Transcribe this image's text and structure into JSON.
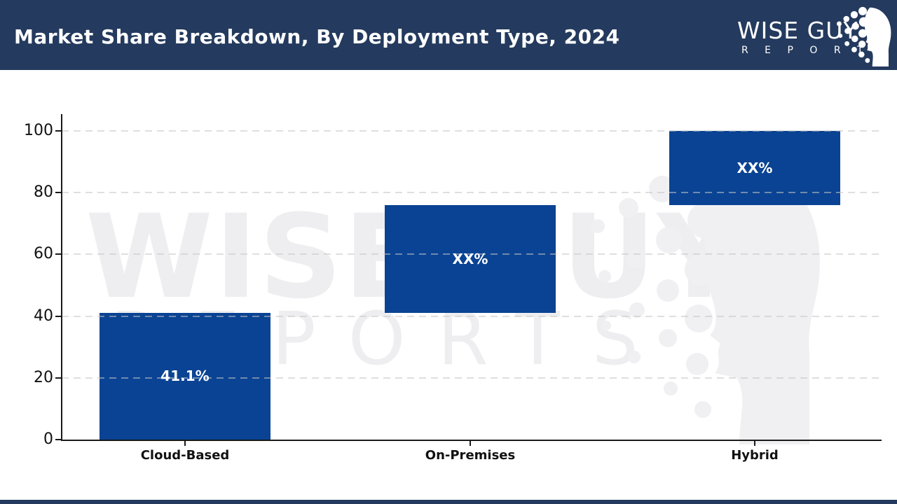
{
  "header": {
    "title": "Market Share Breakdown, By Deployment Type, 2024",
    "bg_color": "#243A5E",
    "logo": {
      "line1": "WISE GUY",
      "line2": "R E P O R T S"
    }
  },
  "watermark": {
    "line1": "WISE GUY",
    "line2": "REPORTS"
  },
  "chart_data": {
    "type": "bar",
    "variant": "waterfall",
    "title": "Market Share Breakdown, By Deployment Type, 2024",
    "categories": [
      "Cloud-Based",
      "On-Premises",
      "Hybrid"
    ],
    "segments": [
      {
        "category": "Cloud-Based",
        "start": 0,
        "end": 41.1,
        "label": "41.1%"
      },
      {
        "category": "On-Premises",
        "start": 41.1,
        "end": 76,
        "label": "XX%"
      },
      {
        "category": "Hybrid",
        "start": 76,
        "end": 100,
        "label": "XX%"
      }
    ],
    "yticks": [
      0,
      20,
      40,
      60,
      80,
      100
    ],
    "ylim": [
      0,
      105.5
    ],
    "xlabel": "",
    "ylabel": "",
    "legend": "none",
    "grid": {
      "axis": "y",
      "style": "dashed",
      "over_bars": true
    },
    "colors": {
      "bar": "#0A4393",
      "bar_label": "#FFFFFF",
      "gridline": "rgba(197,197,197,0.55)",
      "axis": "#1a1a1a",
      "tick_label": "#111111"
    }
  },
  "footer": {
    "bg_color": "#243A5E"
  }
}
